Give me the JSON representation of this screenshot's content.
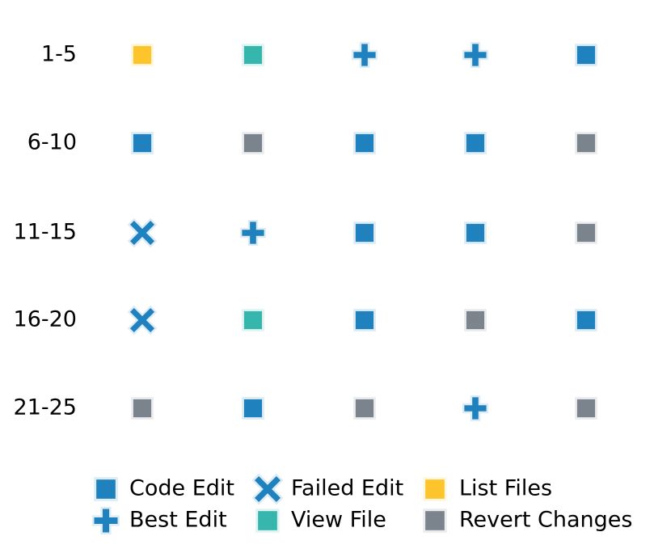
{
  "figure": {
    "background": "#ffffff",
    "text_color": "#000000"
  },
  "colors": {
    "blue": "#1f82bf",
    "teal": "#36b6ad",
    "yellow": "#fdc42c",
    "gray": "#7b838c"
  },
  "chart_data": {
    "type": "scatter",
    "y_categories": [
      "1-5",
      "6-10",
      "11-15",
      "16-20",
      "21-25"
    ],
    "x_slots": [
      1,
      2,
      3,
      4,
      5
    ],
    "grid": [
      [
        "List Files",
        "View File",
        "Best Edit",
        "Best Edit",
        "Code Edit"
      ],
      [
        "Code Edit",
        "Revert Changes",
        "Code Edit",
        "Code Edit",
        "Revert Changes"
      ],
      [
        "Failed Edit",
        "Best Edit",
        "Code Edit",
        "Code Edit",
        "Revert Changes"
      ],
      [
        "Failed Edit",
        "View File",
        "Code Edit",
        "Revert Changes",
        "Code Edit"
      ],
      [
        "Revert Changes",
        "Code Edit",
        "Revert Changes",
        "Best Edit",
        "Revert Changes"
      ]
    ],
    "legend": [
      {
        "label": "Code Edit",
        "marker": "square",
        "color": "#1f82bf"
      },
      {
        "label": "Failed Edit",
        "marker": "x",
        "color": "#1f82bf"
      },
      {
        "label": "List Files",
        "marker": "square",
        "color": "#fdc42c"
      },
      {
        "label": "Best Edit",
        "marker": "plus",
        "color": "#1f82bf"
      },
      {
        "label": "View File",
        "marker": "square",
        "color": "#36b6ad"
      },
      {
        "label": "Revert Changes",
        "marker": "square",
        "color": "#7b838c"
      }
    ],
    "legend_position": "bottom",
    "axes_visible": false,
    "title": ""
  }
}
